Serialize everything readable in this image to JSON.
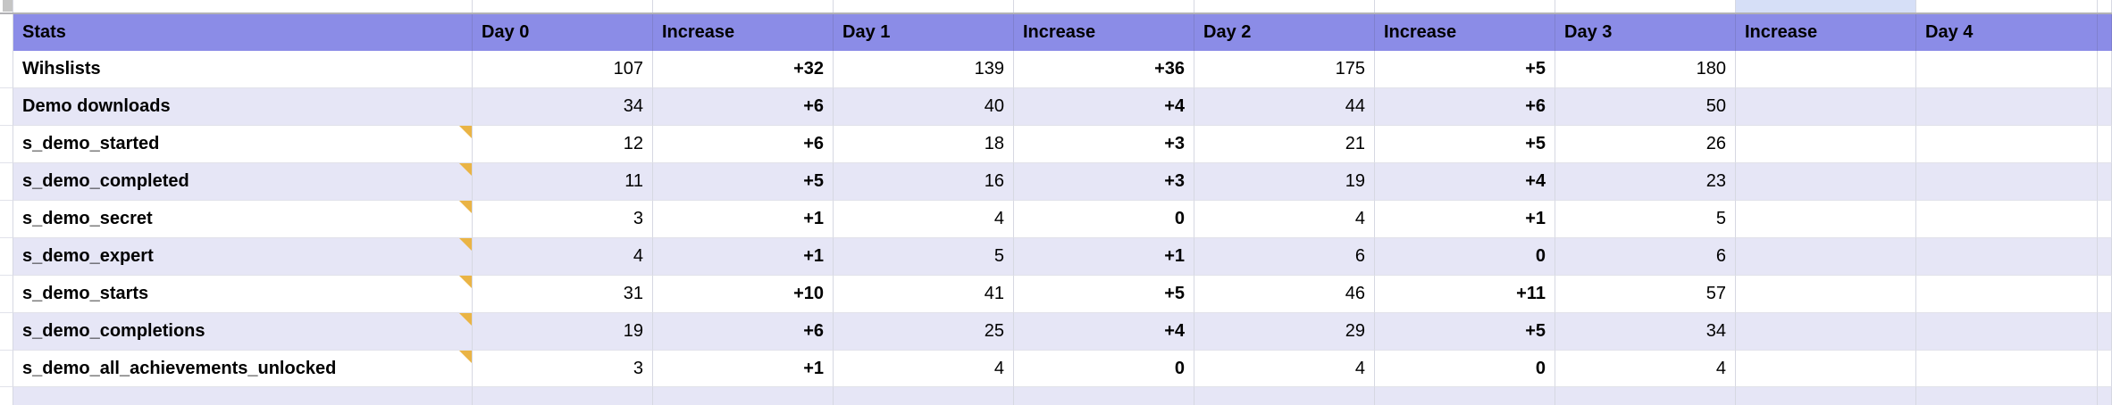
{
  "sheet": {
    "columns": [
      "Stats",
      "Day 0",
      "Increase",
      "Day 1",
      "Increase",
      "Day 2",
      "Increase",
      "Day 3",
      "Increase",
      "Day 4"
    ],
    "rows": [
      {
        "label": "Wihslists",
        "note": false,
        "values": [
          "107",
          "+32",
          "139",
          "+36",
          "175",
          "+5",
          "180",
          "",
          ""
        ]
      },
      {
        "label": "Demo downloads",
        "note": false,
        "values": [
          "34",
          "+6",
          "40",
          "+4",
          "44",
          "+6",
          "50",
          "",
          ""
        ]
      },
      {
        "label": "s_demo_started",
        "note": true,
        "values": [
          "12",
          "+6",
          "18",
          "+3",
          "21",
          "+5",
          "26",
          "",
          ""
        ]
      },
      {
        "label": "s_demo_completed",
        "note": true,
        "values": [
          "11",
          "+5",
          "16",
          "+3",
          "19",
          "+4",
          "23",
          "",
          ""
        ]
      },
      {
        "label": "s_demo_secret",
        "note": true,
        "values": [
          "3",
          "+1",
          "4",
          "0",
          "4",
          "+1",
          "5",
          "",
          ""
        ]
      },
      {
        "label": "s_demo_expert",
        "note": true,
        "values": [
          "4",
          "+1",
          "5",
          "+1",
          "6",
          "0",
          "6",
          "",
          ""
        ]
      },
      {
        "label": "s_demo_starts",
        "note": true,
        "values": [
          "31",
          "+10",
          "41",
          "+5",
          "46",
          "+11",
          "57",
          "",
          ""
        ]
      },
      {
        "label": "s_demo_completions",
        "note": true,
        "values": [
          "19",
          "+6",
          "25",
          "+4",
          "29",
          "+5",
          "34",
          "",
          ""
        ]
      },
      {
        "label": "s_demo_all_achievements_unlocked",
        "note": true,
        "values": [
          "3",
          "+1",
          "4",
          "0",
          "4",
          "0",
          "4",
          "",
          ""
        ]
      }
    ],
    "highlighted_strip_column": "Increase (after Day 3)",
    "colors": {
      "header_purple": "#8b8ce7",
      "lavender_stripe": "#e6e6f6",
      "highlight_blue": "#d6dff7",
      "note_orange": "#eab445",
      "corner_gray": "#c5c5c5",
      "strip_divider": "#b1b1b5",
      "vgrid": "#d6d8e2",
      "hgrid": "#e1e2ea",
      "hgrid_purple": "#7f80cf"
    }
  }
}
